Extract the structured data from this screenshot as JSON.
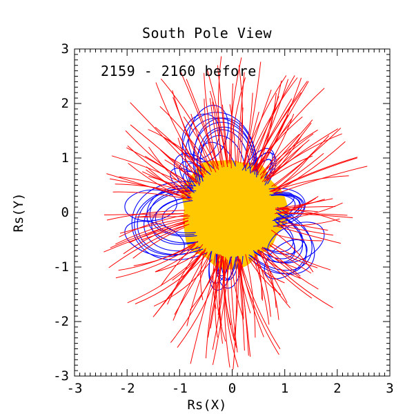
{
  "chart_data": {
    "type": "line",
    "title": "South Pole View",
    "annotation": "2159 - 2160 before",
    "xlabel": "Rs(X)",
    "ylabel": "Rs(Y)",
    "xlim": [
      -3,
      3
    ],
    "ylim": [
      -3,
      3
    ],
    "xticks": [
      -3,
      -2,
      -1,
      0,
      1,
      2,
      3
    ],
    "yticks": [
      -3,
      -2,
      -1,
      0,
      1,
      2,
      3
    ],
    "minor_ticks_per_interval": 10,
    "grid": false,
    "legend": null,
    "background": "#FFFFFF",
    "frame_color": "#000000",
    "text_color": "#000000",
    "colors": {
      "open_field": "#FF0000",
      "closed_field": "#0000FF",
      "sun_fill": "#FFC800"
    },
    "sun": {
      "center": [
        0,
        0
      ],
      "base_radius": 1.0,
      "bumps": [
        [
          0.045,
          3,
          1.0
        ],
        [
          0.03,
          5,
          2.2
        ],
        [
          0.025,
          7,
          0.7
        ],
        [
          0.02,
          11,
          3.1
        ]
      ]
    },
    "seed": 7,
    "open_field_clusters": [
      {
        "angle": 90,
        "spread": 33,
        "count": 38,
        "r_end": [
          1.8,
          2.9
        ],
        "drift": 10
      },
      {
        "angle": 145,
        "spread": 22,
        "count": 30,
        "r_end": [
          1.6,
          2.8
        ],
        "drift": 14
      },
      {
        "angle": 185,
        "spread": 12,
        "count": 14,
        "r_end": [
          1.8,
          2.6
        ],
        "drift": 10
      },
      {
        "angle": 235,
        "spread": 18,
        "count": 20,
        "r_end": [
          1.6,
          2.6
        ],
        "drift": 18
      },
      {
        "angle": 268,
        "spread": 16,
        "count": 30,
        "r_end": [
          1.8,
          2.9
        ],
        "drift": 12
      },
      {
        "angle": 305,
        "spread": 20,
        "count": 20,
        "r_end": [
          1.6,
          2.6
        ],
        "drift": 16
      },
      {
        "angle": 350,
        "spread": 18,
        "count": 16,
        "r_end": [
          1.5,
          2.5
        ],
        "drift": 12
      },
      {
        "angle": 40,
        "spread": 20,
        "count": 26,
        "r_end": [
          1.7,
          2.8
        ],
        "drift": 12
      }
    ],
    "closed_field_systems": [
      {
        "angle": 103,
        "count": 8,
        "half_sep": [
          28,
          52
        ],
        "apex": [
          1.35,
          2.05
        ],
        "ellipses": 2
      },
      {
        "angle": 187,
        "count": 9,
        "half_sep": [
          24,
          46
        ],
        "apex": [
          1.3,
          2.1
        ],
        "ellipses": 2
      },
      {
        "angle": 328,
        "count": 8,
        "half_sep": [
          18,
          38
        ],
        "apex": [
          1.2,
          1.8
        ],
        "ellipses": 2
      },
      {
        "angle": 12,
        "count": 7,
        "half_sep": [
          10,
          22
        ],
        "apex": [
          1.05,
          1.4
        ],
        "ellipses": 0
      },
      {
        "angle": 262,
        "count": 6,
        "half_sep": [
          8,
          18
        ],
        "apex": [
          1.05,
          1.35
        ],
        "ellipses": 0
      },
      {
        "angle": 55,
        "count": 5,
        "half_sep": [
          8,
          16
        ],
        "apex": [
          1.05,
          1.3
        ],
        "ellipses": 0
      },
      {
        "angle": 140,
        "count": 5,
        "half_sep": [
          10,
          20
        ],
        "apex": [
          1.05,
          1.35
        ],
        "ellipses": 0
      }
    ]
  }
}
